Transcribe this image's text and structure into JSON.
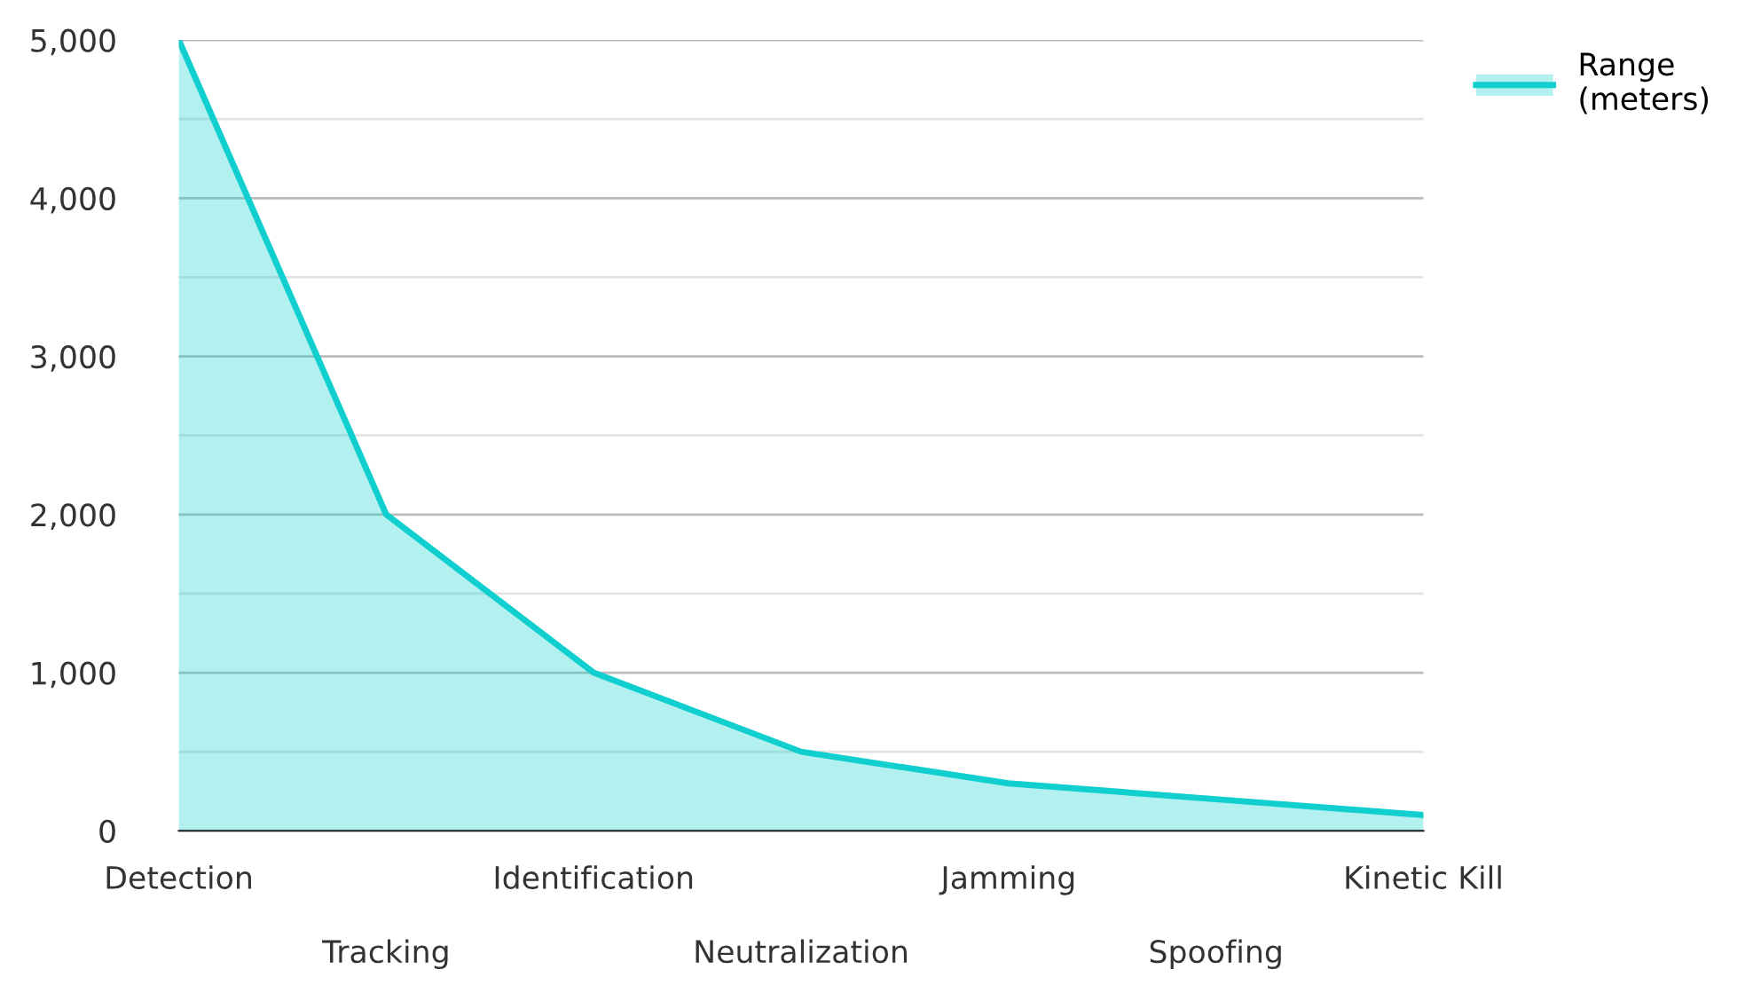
{
  "chart_data": {
    "type": "area",
    "categories": [
      "Detection",
      "Tracking",
      "Identification",
      "Neutralization",
      "Jamming",
      "Spoofing",
      "Kinetic Kill"
    ],
    "series": [
      {
        "name": "Range (meters)",
        "color": "#12cfcf",
        "values": [
          5000,
          2000,
          1000,
          500,
          300,
          200,
          100
        ]
      }
    ],
    "ylim": [
      0,
      5000
    ],
    "yticks": [
      0,
      {
        "value": 500,
        "label": null
      },
      {
        "value": 1000,
        "label": "1,000"
      },
      {
        "value": 1500,
        "label": null
      },
      {
        "value": 2000,
        "label": "2,000"
      },
      {
        "value": 2500,
        "label": null
      },
      {
        "value": 3000,
        "label": "3,000"
      },
      {
        "value": 3500,
        "label": null
      },
      {
        "value": 4000,
        "label": "4,000"
      },
      {
        "value": 4500,
        "label": null
      },
      {
        "value": 5000,
        "label": "5,000"
      }
    ],
    "grid": "y",
    "legend": "top right"
  }
}
